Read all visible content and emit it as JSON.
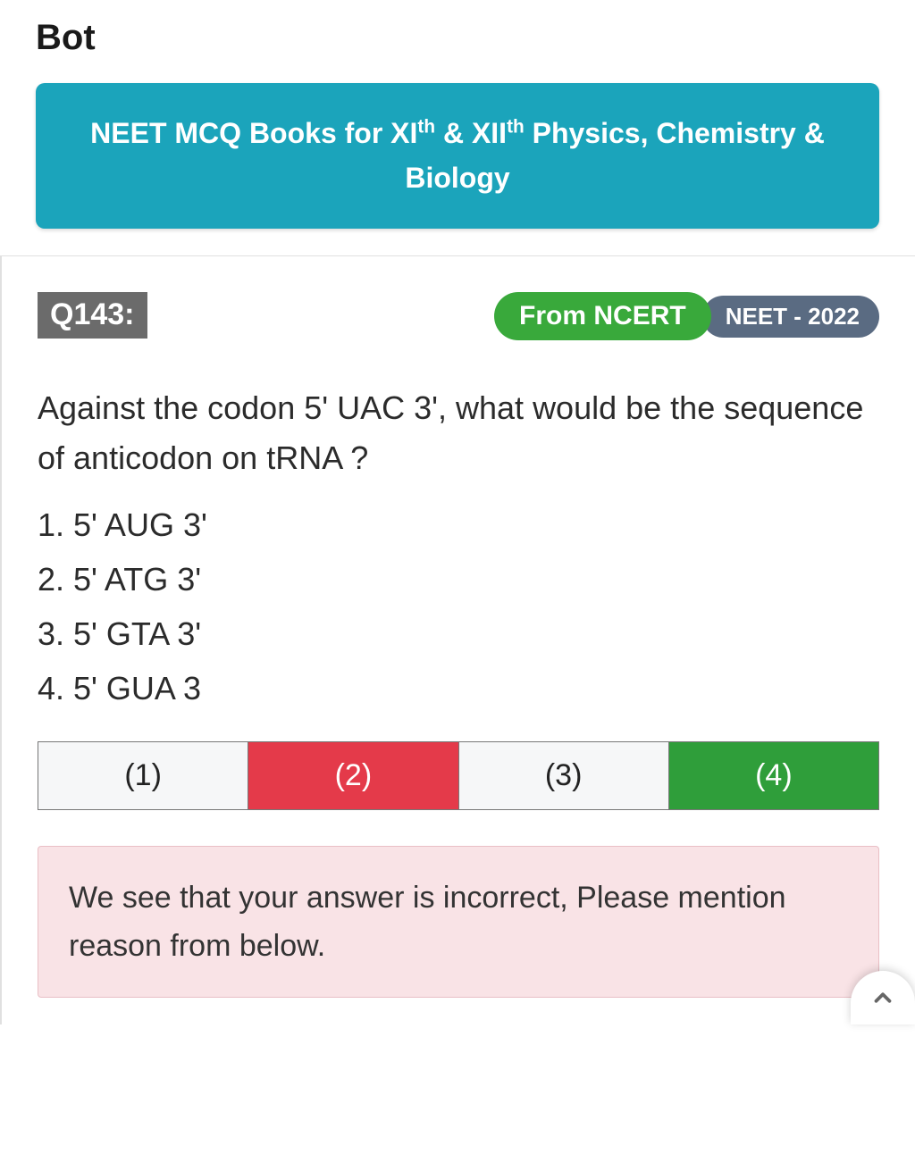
{
  "header": {
    "bot_label": "Bot",
    "promo_html": "NEET MCQ Books for XI<sup>th</sup> & XII<sup>th</sup> Physics, Chemistry & Biology"
  },
  "question": {
    "number": "Q143:",
    "tag_source": "From NCERT",
    "tag_year": "NEET - 2022",
    "text": "Against the codon 5' UAC 3', what would be the sequence of anticodon on tRNA ?",
    "options": [
      "1. 5' AUG 3'",
      "2. 5' ATG 3'",
      "3. 5' GTA 3'",
      "4. 5' GUA 3"
    ]
  },
  "answers": {
    "cells": [
      {
        "label": "(1)",
        "state": "plain"
      },
      {
        "label": "(2)",
        "state": "wrong"
      },
      {
        "label": "(3)",
        "state": "plain"
      },
      {
        "label": "(4)",
        "state": "correct"
      }
    ],
    "colors": {
      "plain_bg": "#f6f7f8",
      "wrong_bg": "#e43a4a",
      "correct_bg": "#2f9e3a",
      "border": "#777777"
    }
  },
  "feedback": {
    "message": "We see that your answer is incorrect, Please mention reason from below.",
    "bg": "#f9e3e6",
    "border": "#e9bfc5"
  }
}
